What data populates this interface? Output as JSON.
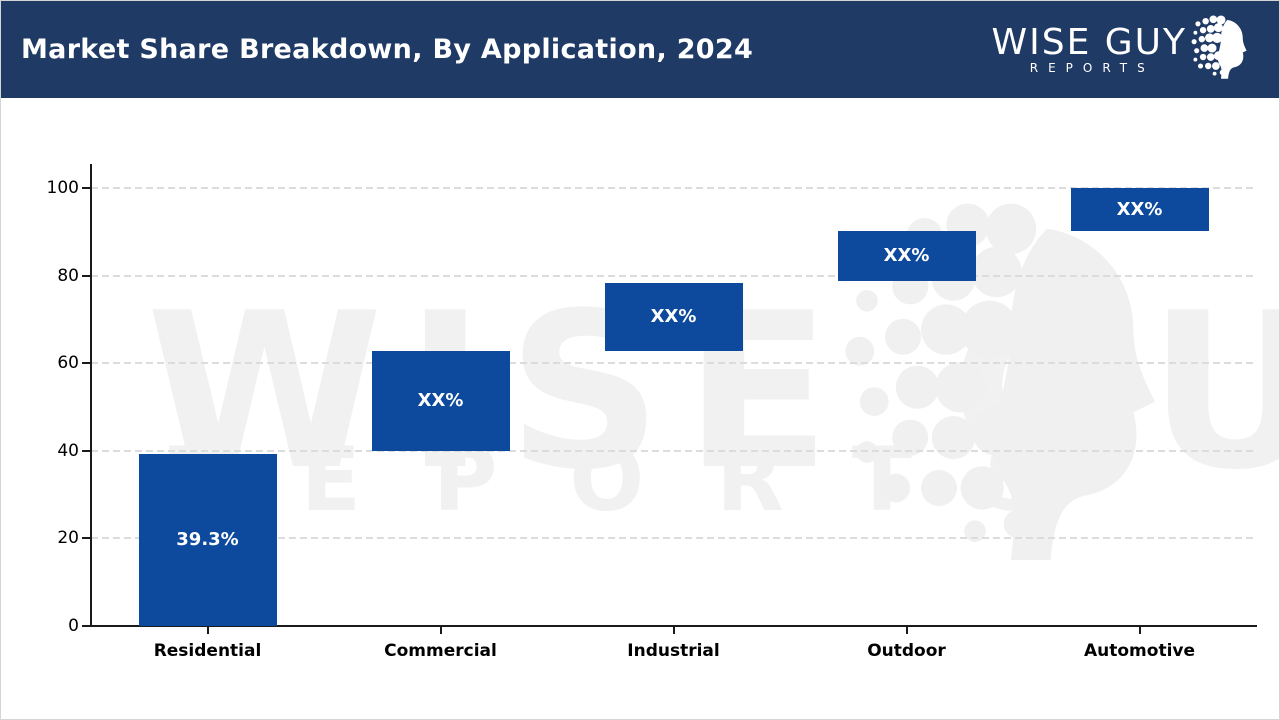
{
  "header": {
    "title": "Market Share Breakdown, By Application, 2024",
    "bg_color": "#203a66",
    "logo": {
      "line1": "WISE GUY",
      "line2": "REPORTS"
    }
  },
  "watermark": {
    "line1": "WISE GUY",
    "line2": "REPORTS"
  },
  "chart_data": {
    "type": "bar",
    "subtype": "waterfall",
    "title": "Market Share Breakdown, By Application, 2024",
    "categories": [
      "Residential",
      "Commercial",
      "Industrial",
      "Outdoor",
      "Automotive"
    ],
    "series": [
      {
        "name": "Market Share",
        "segments": [
          {
            "category": "Residential",
            "start": 0,
            "end": 39.3,
            "label": "39.3%"
          },
          {
            "category": "Commercial",
            "start": 40,
            "end": 62.8,
            "label": "XX%"
          },
          {
            "category": "Industrial",
            "start": 62.8,
            "end": 78.3,
            "label": "XX%"
          },
          {
            "category": "Outdoor",
            "start": 78.8,
            "end": 90.2,
            "label": "XX%"
          },
          {
            "category": "Automotive",
            "start": 90.2,
            "end": 100,
            "label": "XX%"
          }
        ]
      }
    ],
    "y_ticks": [
      0,
      20,
      40,
      60,
      80,
      100
    ],
    "ylim": [
      0,
      107
    ],
    "xlabel": "",
    "ylabel": "",
    "grid": "dashed-horizontal",
    "legend": "none",
    "bar_color": "#0d4a9d",
    "bar_label_color": "#ffffff",
    "grid_color": "#dcdcdc",
    "axis_color": "#1a1a1a",
    "tick_label_color": "#000000"
  }
}
